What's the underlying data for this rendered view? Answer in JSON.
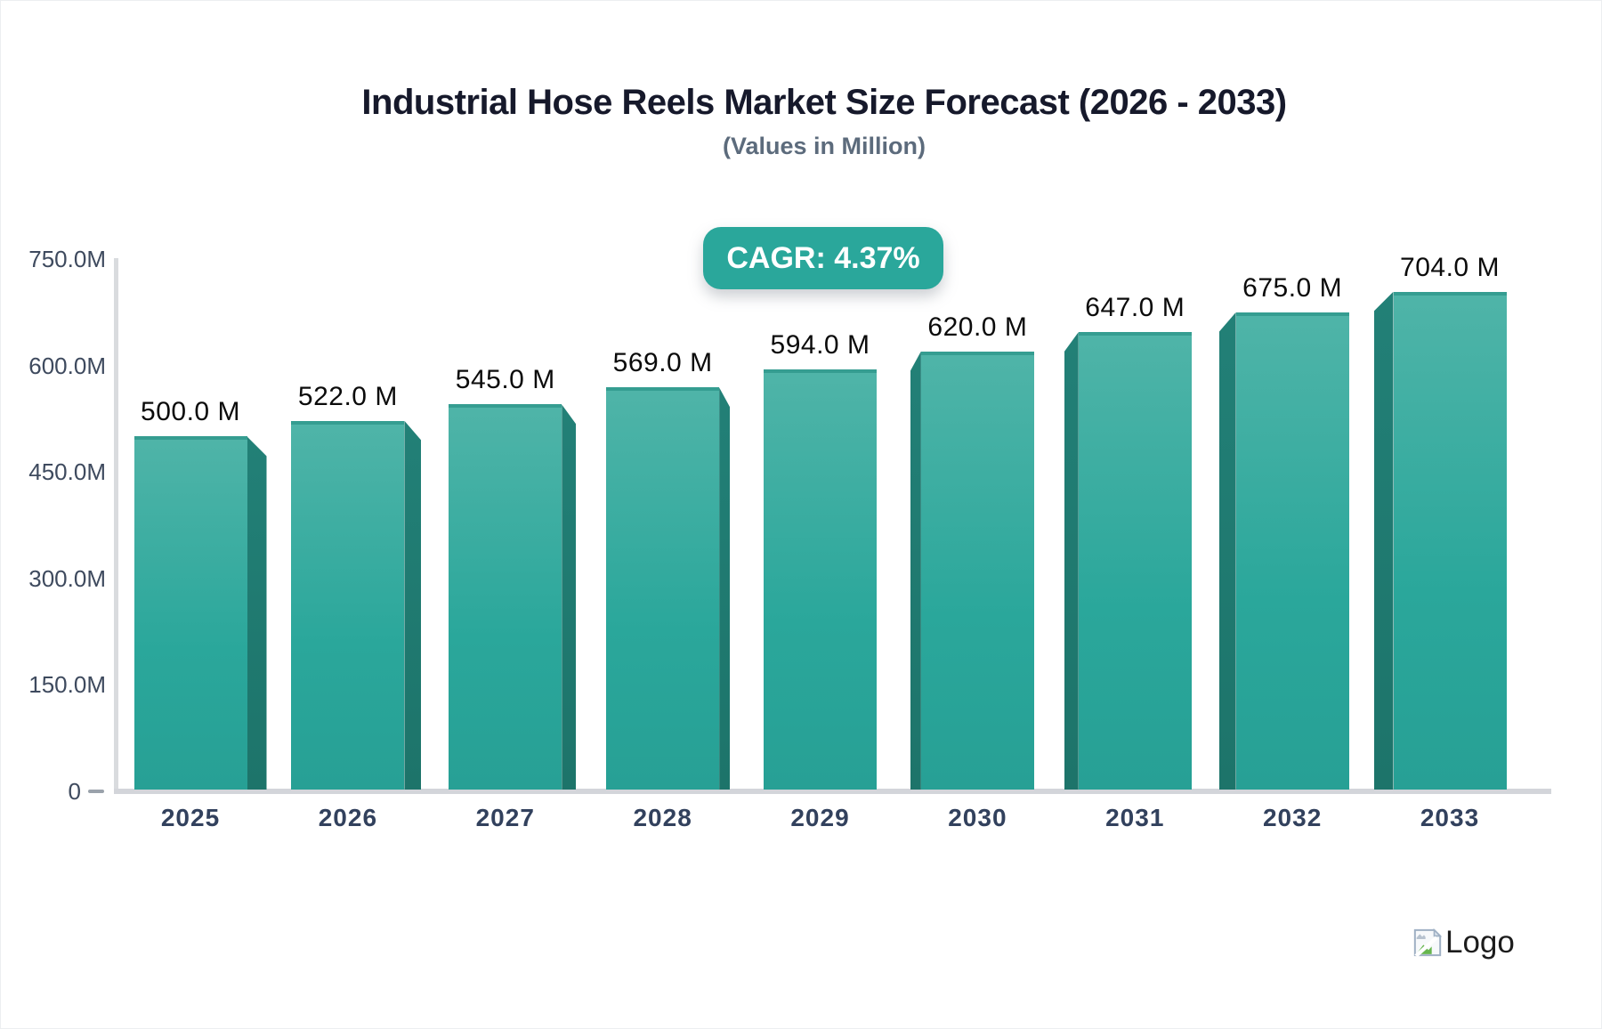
{
  "header": {
    "title": "Industrial Hose Reels Market Size Forecast (2026 - 2033)",
    "subtitle": "(Values in Million)"
  },
  "badge": {
    "label": "CAGR: 4.37%"
  },
  "footer": {
    "logo_text": "Logo",
    "broken_image_icon": "broken-image-icon"
  },
  "colors": {
    "accent_teal": "#2aa79b",
    "bar_front_top": "#4fb4a8",
    "bar_front_bottom": "#27a095",
    "bar_side_dark": "#1f7c71",
    "axis_line_gray": "#d5d7dc",
    "y_label_color": "#3e4a5e",
    "x_label_color": "#32415d",
    "value_label_color": "#0b0b0b",
    "title_color": "#16192b",
    "subtitle_color": "#5c6b7c"
  },
  "chart_data": {
    "type": "bar",
    "title": "Industrial Hose Reels Market Size Forecast (2026 - 2033)",
    "subtitle": "(Values in Million)",
    "annotation": "CAGR: 4.37%",
    "unit": "Million",
    "xlabel": "",
    "ylabel": "",
    "categories": [
      "2025",
      "2026",
      "2027",
      "2028",
      "2029",
      "2030",
      "2031",
      "2032",
      "2033"
    ],
    "values": [
      500.0,
      522.0,
      545.0,
      569.0,
      594.0,
      620.0,
      647.0,
      675.0,
      704.0
    ],
    "value_labels": [
      "500.0 M",
      "522.0 M",
      "545.0 M",
      "569.0 M",
      "594.0 M",
      "620.0 M",
      "647.0 M",
      "675.0 M",
      "704.0 M"
    ],
    "ylim": [
      0,
      750
    ],
    "y_ticks": [
      {
        "value": 750,
        "label": "750.0M"
      },
      {
        "value": 600,
        "label": "600.0M"
      },
      {
        "value": 450,
        "label": "450.0M"
      },
      {
        "value": 300,
        "label": "300.0M"
      },
      {
        "value": 150,
        "label": "150.0M"
      },
      {
        "value": 0,
        "label": "0"
      }
    ],
    "grid": false,
    "legend": false,
    "bar_style": "3d-perspective-teal"
  }
}
